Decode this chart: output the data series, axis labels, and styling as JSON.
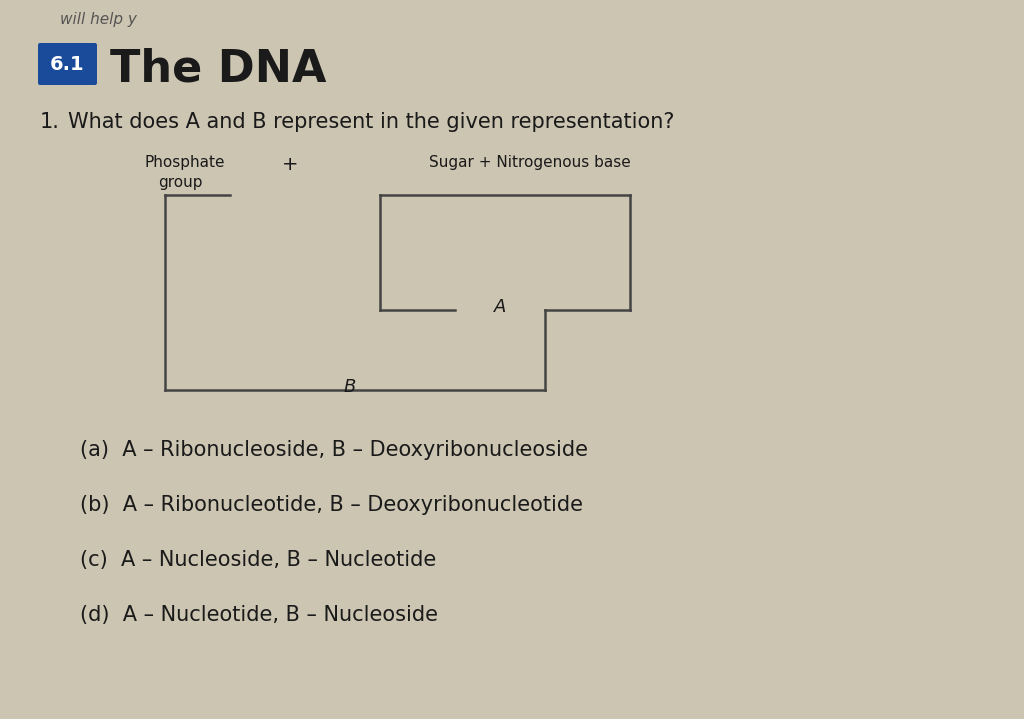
{
  "bg_color": "#ccc5b2",
  "title_badge": "6.1",
  "title_badge_bg": "#1a4a9a",
  "title_badge_fg": "#ffffff",
  "title_text": "The DNA",
  "title_fontsize": 32,
  "header_text": "will help y",
  "question_number": "1.",
  "question_text": "What does A and B represent in the given representation?",
  "question_fontsize": 15,
  "label_phosphate_line1": "Phosphate",
  "label_phosphate_line2": "group",
  "label_plus1": "+",
  "label_sugar": "Sugar + Nitrogenous base",
  "label_A": "A",
  "label_B": "B",
  "option_a": "(a)  A – Ribonucleoside, B – Deoxyribonucleoside",
  "option_b": "(b)  A – Ribonucleotide, B – Deoxyribonucleotide",
  "option_c": "(c)  A – Nucleoside, B – Nucleotide",
  "option_d": "(d)  A – Nucleotide, B – Nucleoside",
  "options_fontsize": 15,
  "line_color": "#444444",
  "text_color": "#1a1a1a",
  "lw": 1.8
}
